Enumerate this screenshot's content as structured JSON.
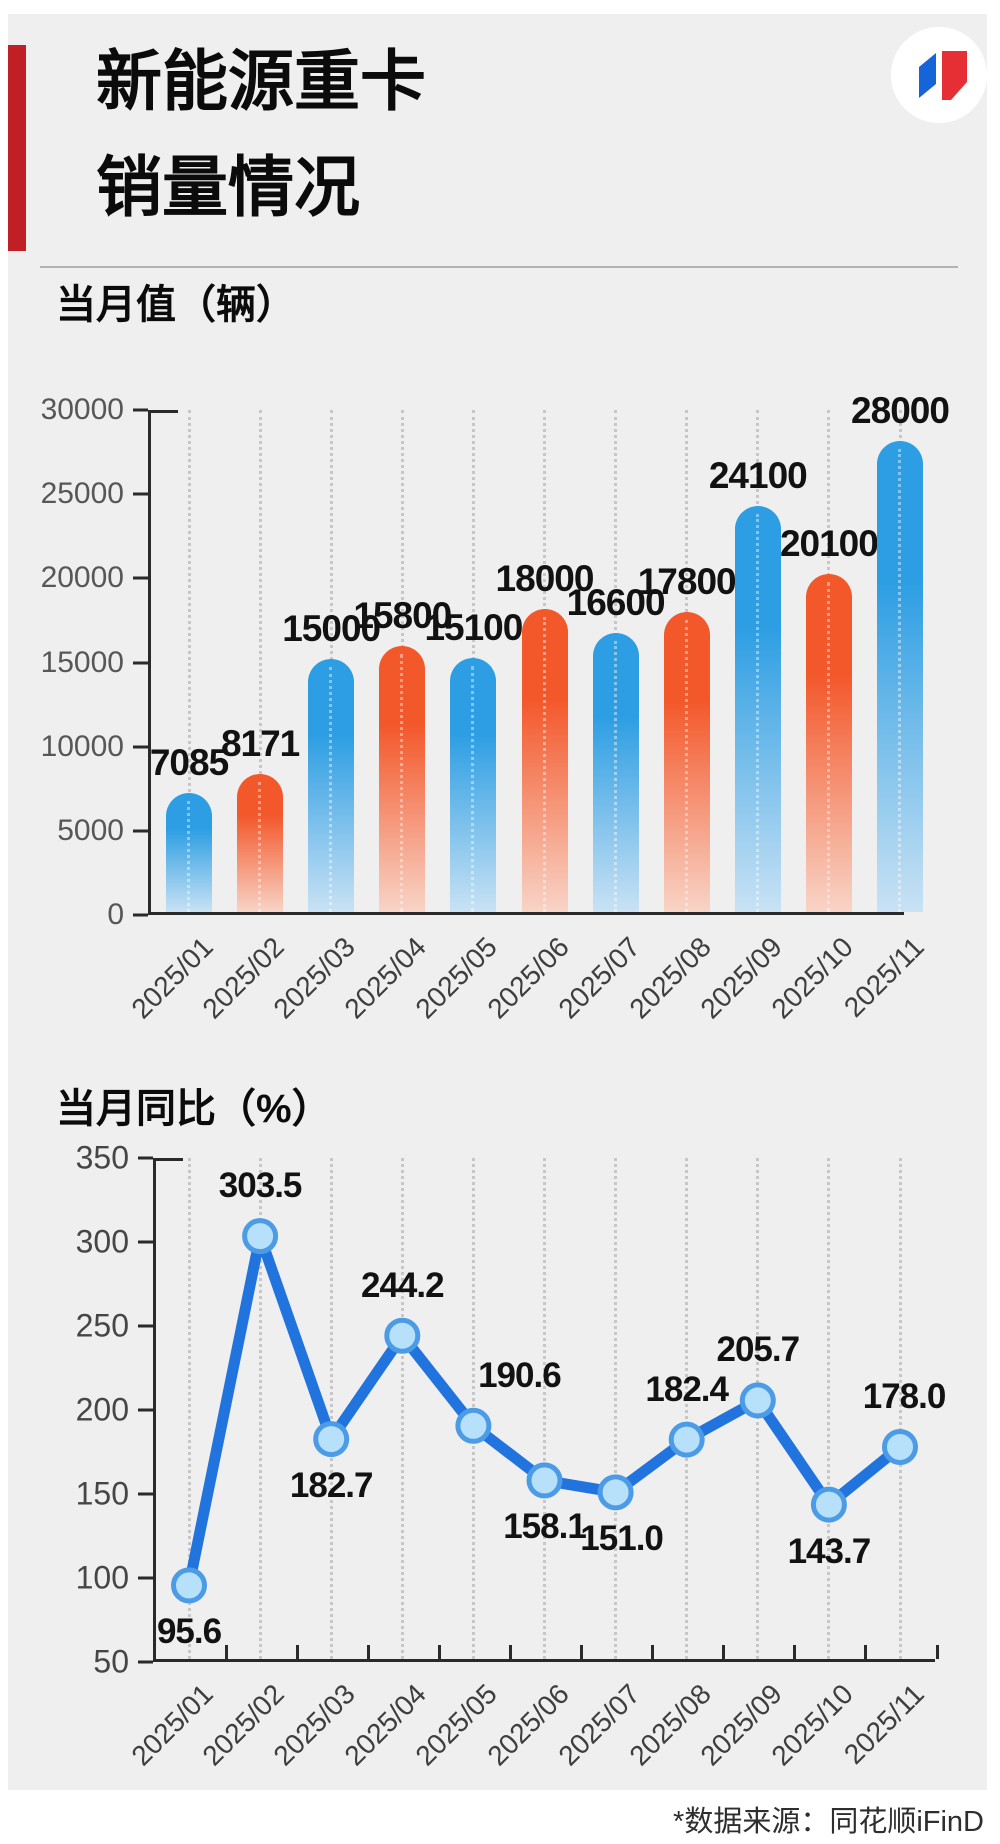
{
  "header": {
    "title_line1": "新能源重卡",
    "title_line2": "销量情况",
    "accent_color": "#c01f26",
    "logo": {
      "name": "tonghuashun-logo",
      "blue": "#1565d8",
      "red": "#e62e35",
      "circle": "#ffffff"
    }
  },
  "footer": {
    "source_note": "*数据来源：同花顺iFinD"
  },
  "chart_data": [
    {
      "type": "bar",
      "title": "当月值（辆）",
      "categories": [
        "2025/01",
        "2025/02",
        "2025/03",
        "2025/04",
        "2025/05",
        "2025/06",
        "2025/07",
        "2025/08",
        "2025/09",
        "2025/10",
        "2025/11"
      ],
      "values": [
        7085,
        8171,
        15000,
        15800,
        15100,
        18000,
        16600,
        17800,
        24100,
        20100,
        28000
      ],
      "value_labels": [
        "7085",
        "8171",
        "15000",
        "15800",
        "15100",
        "18000",
        "16600",
        "17800",
        "24100",
        "20100",
        "28000"
      ],
      "ylim": [
        0,
        30000
      ],
      "yticks": [
        0,
        5000,
        10000,
        15000,
        20000,
        25000,
        30000
      ],
      "grid": "dotted-vertical",
      "legend": "none",
      "colors": {
        "bar_blue_top": "#2d9ee3",
        "bar_blue_bottom": "#c9e2f4",
        "bar_orange_top": "#f3582b",
        "bar_orange_bottom": "#f8d4c7",
        "alternation": "odd months blue, even months orange"
      }
    },
    {
      "type": "line",
      "title": "当月同比（%）",
      "categories": [
        "2025/01",
        "2025/02",
        "2025/03",
        "2025/04",
        "2025/05",
        "2025/06",
        "2025/07",
        "2025/08",
        "2025/09",
        "2025/10",
        "2025/11"
      ],
      "values": [
        95.6,
        303.5,
        182.7,
        244.2,
        190.6,
        158.1,
        151.0,
        182.4,
        205.7,
        143.7,
        178.0
      ],
      "value_labels": [
        {
          "text": "95.6",
          "pos": "below",
          "dx": 0
        },
        {
          "text": "303.5",
          "pos": "above",
          "dx": 0
        },
        {
          "text": "182.7",
          "pos": "below",
          "dx": 0
        },
        {
          "text": "244.2",
          "pos": "above",
          "dx": 0
        },
        {
          "text": "190.6",
          "pos": "above",
          "dx": 46
        },
        {
          "text": "158.1",
          "pos": "below",
          "dx": 0
        },
        {
          "text": "151.0",
          "pos": "below",
          "dx": 6
        },
        {
          "text": "182.4",
          "pos": "above",
          "dx": 0
        },
        {
          "text": "205.7",
          "pos": "above",
          "dx": 0
        },
        {
          "text": "143.7",
          "pos": "below",
          "dx": 0
        },
        {
          "text": "178.0",
          "pos": "above",
          "dx": 4
        }
      ],
      "ylim": [
        50,
        350
      ],
      "yticks": [
        350,
        300,
        250,
        200,
        150,
        100,
        50
      ],
      "grid": "dotted-vertical",
      "legend": "none",
      "colors": {
        "line": "#2173de",
        "marker_fill": "#b7e0fa",
        "marker_stroke": "#4c9be6"
      }
    }
  ]
}
